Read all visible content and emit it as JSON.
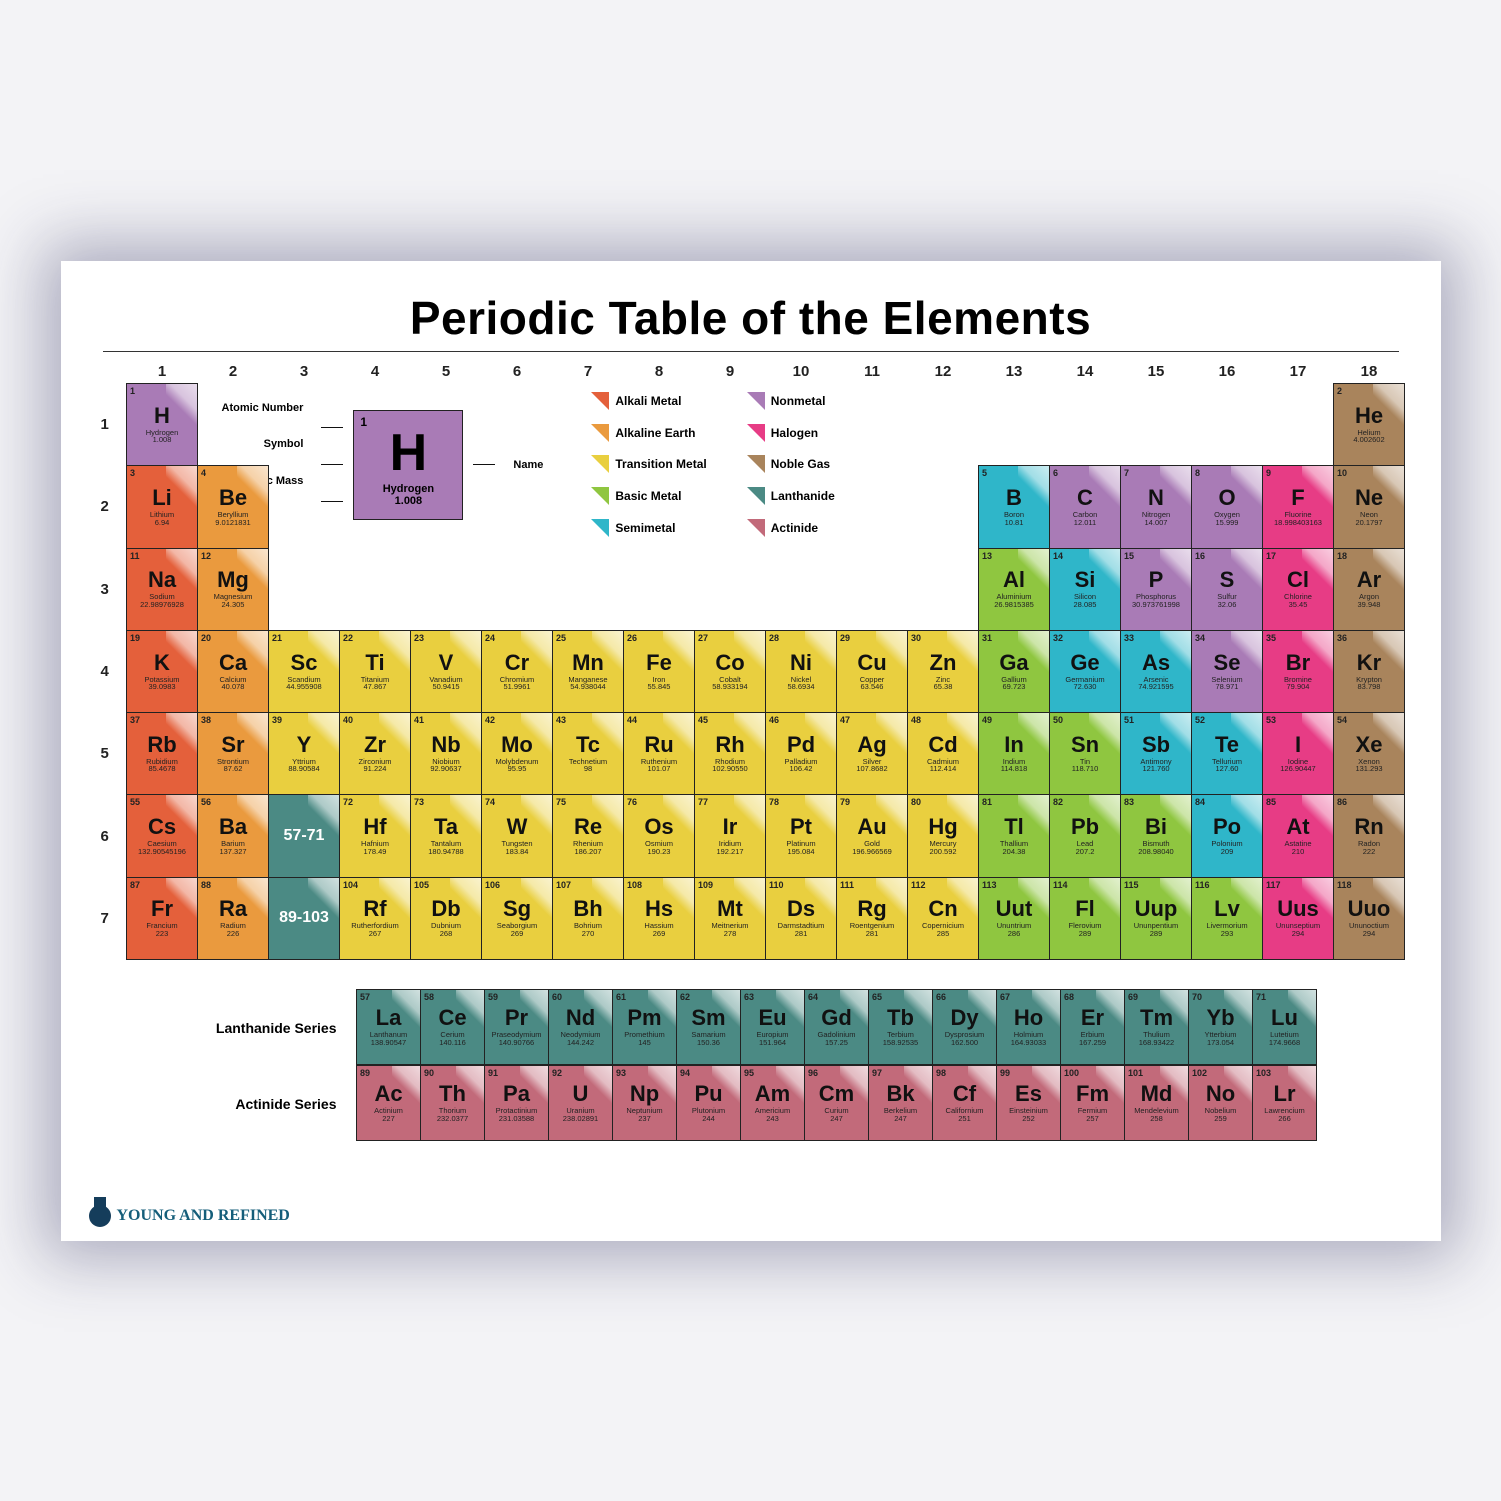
{
  "title": "Periodic Table of the Elements",
  "brand": "YOUNG AND REFINED",
  "key": {
    "atomic_number_label": "Atomic Number",
    "symbol_label": "Symbol",
    "atomic_mass_label": "Atomic Mass",
    "name_label": "Name",
    "example": {
      "num": "1",
      "sym": "H",
      "name": "Hydrogen",
      "mass": "1.008",
      "color": "#a97bb6"
    }
  },
  "legend": [
    {
      "label": "Alkali Metal",
      "color": "#e4603b"
    },
    {
      "label": "Nonmetal",
      "color": "#a97bb6"
    },
    {
      "label": "Alkaline Earth",
      "color": "#ea9a3e"
    },
    {
      "label": "Halogen",
      "color": "#e73c85"
    },
    {
      "label": "Transition Metal",
      "color": "#e9cf3f"
    },
    {
      "label": "Noble Gas",
      "color": "#a9845c"
    },
    {
      "label": "Basic Metal",
      "color": "#8fc640"
    },
    {
      "label": "Lanthanide",
      "color": "#4b8a84"
    },
    {
      "label": "Semimetal",
      "color": "#2fb6c9"
    },
    {
      "label": "Actinide",
      "color": "#c26a7a"
    }
  ],
  "colors": {
    "alkali": "#e4603b",
    "alkaline": "#ea9a3e",
    "transition": "#e9cf3f",
    "basic": "#8fc640",
    "semimetal": "#2fb6c9",
    "nonmetal": "#a97bb6",
    "halogen": "#e73c85",
    "noble": "#a9845c",
    "lanth": "#4b8a84",
    "act": "#c26a7a"
  },
  "groups": [
    "1",
    "2",
    "3",
    "4",
    "5",
    "6",
    "7",
    "8",
    "9",
    "10",
    "11",
    "12",
    "13",
    "14",
    "15",
    "16",
    "17",
    "18"
  ],
  "periods": [
    "1",
    "2",
    "3",
    "4",
    "5",
    "6",
    "7"
  ],
  "lanth_label": "Lanthanide Series",
  "act_label": "Actinide Series",
  "lanth_range": "57-71",
  "act_range": "89-103",
  "elements": [
    {
      "n": 1,
      "s": "H",
      "nm": "Hydrogen",
      "m": "1.008",
      "c": "nonmetal",
      "r": 1,
      "g": 1
    },
    {
      "n": 2,
      "s": "He",
      "nm": "Helium",
      "m": "4.002602",
      "c": "noble",
      "r": 1,
      "g": 18
    },
    {
      "n": 3,
      "s": "Li",
      "nm": "Lithium",
      "m": "6.94",
      "c": "alkali",
      "r": 2,
      "g": 1
    },
    {
      "n": 4,
      "s": "Be",
      "nm": "Beryllium",
      "m": "9.0121831",
      "c": "alkaline",
      "r": 2,
      "g": 2
    },
    {
      "n": 5,
      "s": "B",
      "nm": "Boron",
      "m": "10.81",
      "c": "semimetal",
      "r": 2,
      "g": 13
    },
    {
      "n": 6,
      "s": "C",
      "nm": "Carbon",
      "m": "12.011",
      "c": "nonmetal",
      "r": 2,
      "g": 14
    },
    {
      "n": 7,
      "s": "N",
      "nm": "Nitrogen",
      "m": "14.007",
      "c": "nonmetal",
      "r": 2,
      "g": 15
    },
    {
      "n": 8,
      "s": "O",
      "nm": "Oxygen",
      "m": "15.999",
      "c": "nonmetal",
      "r": 2,
      "g": 16
    },
    {
      "n": 9,
      "s": "F",
      "nm": "Fluorine",
      "m": "18.998403163",
      "c": "halogen",
      "r": 2,
      "g": 17
    },
    {
      "n": 10,
      "s": "Ne",
      "nm": "Neon",
      "m": "20.1797",
      "c": "noble",
      "r": 2,
      "g": 18
    },
    {
      "n": 11,
      "s": "Na",
      "nm": "Sodium",
      "m": "22.98976928",
      "c": "alkali",
      "r": 3,
      "g": 1
    },
    {
      "n": 12,
      "s": "Mg",
      "nm": "Magnesium",
      "m": "24.305",
      "c": "alkaline",
      "r": 3,
      "g": 2
    },
    {
      "n": 13,
      "s": "Al",
      "nm": "Aluminium",
      "m": "26.9815385",
      "c": "basic",
      "r": 3,
      "g": 13
    },
    {
      "n": 14,
      "s": "Si",
      "nm": "Silicon",
      "m": "28.085",
      "c": "semimetal",
      "r": 3,
      "g": 14
    },
    {
      "n": 15,
      "s": "P",
      "nm": "Phosphorus",
      "m": "30.973761998",
      "c": "nonmetal",
      "r": 3,
      "g": 15
    },
    {
      "n": 16,
      "s": "S",
      "nm": "Sulfur",
      "m": "32.06",
      "c": "nonmetal",
      "r": 3,
      "g": 16
    },
    {
      "n": 17,
      "s": "Cl",
      "nm": "Chlorine",
      "m": "35.45",
      "c": "halogen",
      "r": 3,
      "g": 17
    },
    {
      "n": 18,
      "s": "Ar",
      "nm": "Argon",
      "m": "39.948",
      "c": "noble",
      "r": 3,
      "g": 18
    },
    {
      "n": 19,
      "s": "K",
      "nm": "Potassium",
      "m": "39.0983",
      "c": "alkali",
      "r": 4,
      "g": 1
    },
    {
      "n": 20,
      "s": "Ca",
      "nm": "Calcium",
      "m": "40.078",
      "c": "alkaline",
      "r": 4,
      "g": 2
    },
    {
      "n": 21,
      "s": "Sc",
      "nm": "Scandium",
      "m": "44.955908",
      "c": "transition",
      "r": 4,
      "g": 3
    },
    {
      "n": 22,
      "s": "Ti",
      "nm": "Titanium",
      "m": "47.867",
      "c": "transition",
      "r": 4,
      "g": 4
    },
    {
      "n": 23,
      "s": "V",
      "nm": "Vanadium",
      "m": "50.9415",
      "c": "transition",
      "r": 4,
      "g": 5
    },
    {
      "n": 24,
      "s": "Cr",
      "nm": "Chromium",
      "m": "51.9961",
      "c": "transition",
      "r": 4,
      "g": 6
    },
    {
      "n": 25,
      "s": "Mn",
      "nm": "Manganese",
      "m": "54.938044",
      "c": "transition",
      "r": 4,
      "g": 7
    },
    {
      "n": 26,
      "s": "Fe",
      "nm": "Iron",
      "m": "55.845",
      "c": "transition",
      "r": 4,
      "g": 8
    },
    {
      "n": 27,
      "s": "Co",
      "nm": "Cobalt",
      "m": "58.933194",
      "c": "transition",
      "r": 4,
      "g": 9
    },
    {
      "n": 28,
      "s": "Ni",
      "nm": "Nickel",
      "m": "58.6934",
      "c": "transition",
      "r": 4,
      "g": 10
    },
    {
      "n": 29,
      "s": "Cu",
      "nm": "Copper",
      "m": "63.546",
      "c": "transition",
      "r": 4,
      "g": 11
    },
    {
      "n": 30,
      "s": "Zn",
      "nm": "Zinc",
      "m": "65.38",
      "c": "transition",
      "r": 4,
      "g": 12
    },
    {
      "n": 31,
      "s": "Ga",
      "nm": "Gallium",
      "m": "69.723",
      "c": "basic",
      "r": 4,
      "g": 13
    },
    {
      "n": 32,
      "s": "Ge",
      "nm": "Germanium",
      "m": "72.630",
      "c": "semimetal",
      "r": 4,
      "g": 14
    },
    {
      "n": 33,
      "s": "As",
      "nm": "Arsenic",
      "m": "74.921595",
      "c": "semimetal",
      "r": 4,
      "g": 15
    },
    {
      "n": 34,
      "s": "Se",
      "nm": "Selenium",
      "m": "78.971",
      "c": "nonmetal",
      "r": 4,
      "g": 16
    },
    {
      "n": 35,
      "s": "Br",
      "nm": "Bromine",
      "m": "79.904",
      "c": "halogen",
      "r": 4,
      "g": 17
    },
    {
      "n": 36,
      "s": "Kr",
      "nm": "Krypton",
      "m": "83.798",
      "c": "noble",
      "r": 4,
      "g": 18
    },
    {
      "n": 37,
      "s": "Rb",
      "nm": "Rubidium",
      "m": "85.4678",
      "c": "alkali",
      "r": 5,
      "g": 1
    },
    {
      "n": 38,
      "s": "Sr",
      "nm": "Strontium",
      "m": "87.62",
      "c": "alkaline",
      "r": 5,
      "g": 2
    },
    {
      "n": 39,
      "s": "Y",
      "nm": "Yttrium",
      "m": "88.90584",
      "c": "transition",
      "r": 5,
      "g": 3
    },
    {
      "n": 40,
      "s": "Zr",
      "nm": "Zirconium",
      "m": "91.224",
      "c": "transition",
      "r": 5,
      "g": 4
    },
    {
      "n": 41,
      "s": "Nb",
      "nm": "Niobium",
      "m": "92.90637",
      "c": "transition",
      "r": 5,
      "g": 5
    },
    {
      "n": 42,
      "s": "Mo",
      "nm": "Molybdenum",
      "m": "95.95",
      "c": "transition",
      "r": 5,
      "g": 6
    },
    {
      "n": 43,
      "s": "Tc",
      "nm": "Technetium",
      "m": "98",
      "c": "transition",
      "r": 5,
      "g": 7
    },
    {
      "n": 44,
      "s": "Ru",
      "nm": "Ruthenium",
      "m": "101.07",
      "c": "transition",
      "r": 5,
      "g": 8
    },
    {
      "n": 45,
      "s": "Rh",
      "nm": "Rhodium",
      "m": "102.90550",
      "c": "transition",
      "r": 5,
      "g": 9
    },
    {
      "n": 46,
      "s": "Pd",
      "nm": "Palladium",
      "m": "106.42",
      "c": "transition",
      "r": 5,
      "g": 10
    },
    {
      "n": 47,
      "s": "Ag",
      "nm": "Silver",
      "m": "107.8682",
      "c": "transition",
      "r": 5,
      "g": 11
    },
    {
      "n": 48,
      "s": "Cd",
      "nm": "Cadmium",
      "m": "112.414",
      "c": "transition",
      "r": 5,
      "g": 12
    },
    {
      "n": 49,
      "s": "In",
      "nm": "Indium",
      "m": "114.818",
      "c": "basic",
      "r": 5,
      "g": 13
    },
    {
      "n": 50,
      "s": "Sn",
      "nm": "Tin",
      "m": "118.710",
      "c": "basic",
      "r": 5,
      "g": 14
    },
    {
      "n": 51,
      "s": "Sb",
      "nm": "Antimony",
      "m": "121.760",
      "c": "semimetal",
      "r": 5,
      "g": 15
    },
    {
      "n": 52,
      "s": "Te",
      "nm": "Tellurium",
      "m": "127.60",
      "c": "semimetal",
      "r": 5,
      "g": 16
    },
    {
      "n": 53,
      "s": "I",
      "nm": "Iodine",
      "m": "126.90447",
      "c": "halogen",
      "r": 5,
      "g": 17
    },
    {
      "n": 54,
      "s": "Xe",
      "nm": "Xenon",
      "m": "131.293",
      "c": "noble",
      "r": 5,
      "g": 18
    },
    {
      "n": 55,
      "s": "Cs",
      "nm": "Caesium",
      "m": "132.90545196",
      "c": "alkali",
      "r": 6,
      "g": 1
    },
    {
      "n": 56,
      "s": "Ba",
      "nm": "Barium",
      "m": "137.327",
      "c": "alkaline",
      "r": 6,
      "g": 2
    },
    {
      "n": 72,
      "s": "Hf",
      "nm": "Hafnium",
      "m": "178.49",
      "c": "transition",
      "r": 6,
      "g": 4
    },
    {
      "n": 73,
      "s": "Ta",
      "nm": "Tantalum",
      "m": "180.94788",
      "c": "transition",
      "r": 6,
      "g": 5
    },
    {
      "n": 74,
      "s": "W",
      "nm": "Tungsten",
      "m": "183.84",
      "c": "transition",
      "r": 6,
      "g": 6
    },
    {
      "n": 75,
      "s": "Re",
      "nm": "Rhenium",
      "m": "186.207",
      "c": "transition",
      "r": 6,
      "g": 7
    },
    {
      "n": 76,
      "s": "Os",
      "nm": "Osmium",
      "m": "190.23",
      "c": "transition",
      "r": 6,
      "g": 8
    },
    {
      "n": 77,
      "s": "Ir",
      "nm": "Iridium",
      "m": "192.217",
      "c": "transition",
      "r": 6,
      "g": 9
    },
    {
      "n": 78,
      "s": "Pt",
      "nm": "Platinum",
      "m": "195.084",
      "c": "transition",
      "r": 6,
      "g": 10
    },
    {
      "n": 79,
      "s": "Au",
      "nm": "Gold",
      "m": "196.966569",
      "c": "transition",
      "r": 6,
      "g": 11
    },
    {
      "n": 80,
      "s": "Hg",
      "nm": "Mercury",
      "m": "200.592",
      "c": "transition",
      "r": 6,
      "g": 12
    },
    {
      "n": 81,
      "s": "Tl",
      "nm": "Thallium",
      "m": "204.38",
      "c": "basic",
      "r": 6,
      "g": 13
    },
    {
      "n": 82,
      "s": "Pb",
      "nm": "Lead",
      "m": "207.2",
      "c": "basic",
      "r": 6,
      "g": 14
    },
    {
      "n": 83,
      "s": "Bi",
      "nm": "Bismuth",
      "m": "208.98040",
      "c": "basic",
      "r": 6,
      "g": 15
    },
    {
      "n": 84,
      "s": "Po",
      "nm": "Polonium",
      "m": "209",
      "c": "semimetal",
      "r": 6,
      "g": 16
    },
    {
      "n": 85,
      "s": "At",
      "nm": "Astatine",
      "m": "210",
      "c": "halogen",
      "r": 6,
      "g": 17
    },
    {
      "n": 86,
      "s": "Rn",
      "nm": "Radon",
      "m": "222",
      "c": "noble",
      "r": 6,
      "g": 18
    },
    {
      "n": 87,
      "s": "Fr",
      "nm": "Francium",
      "m": "223",
      "c": "alkali",
      "r": 7,
      "g": 1
    },
    {
      "n": 88,
      "s": "Ra",
      "nm": "Radium",
      "m": "226",
      "c": "alkaline",
      "r": 7,
      "g": 2
    },
    {
      "n": 104,
      "s": "Rf",
      "nm": "Rutherfordium",
      "m": "267",
      "c": "transition",
      "r": 7,
      "g": 4
    },
    {
      "n": 105,
      "s": "Db",
      "nm": "Dubnium",
      "m": "268",
      "c": "transition",
      "r": 7,
      "g": 5
    },
    {
      "n": 106,
      "s": "Sg",
      "nm": "Seaborgium",
      "m": "269",
      "c": "transition",
      "r": 7,
      "g": 6
    },
    {
      "n": 107,
      "s": "Bh",
      "nm": "Bohrium",
      "m": "270",
      "c": "transition",
      "r": 7,
      "g": 7
    },
    {
      "n": 108,
      "s": "Hs",
      "nm": "Hassium",
      "m": "269",
      "c": "transition",
      "r": 7,
      "g": 8
    },
    {
      "n": 109,
      "s": "Mt",
      "nm": "Meitnerium",
      "m": "278",
      "c": "transition",
      "r": 7,
      "g": 9
    },
    {
      "n": 110,
      "s": "Ds",
      "nm": "Darmstadtium",
      "m": "281",
      "c": "transition",
      "r": 7,
      "g": 10
    },
    {
      "n": 111,
      "s": "Rg",
      "nm": "Roentgenium",
      "m": "281",
      "c": "transition",
      "r": 7,
      "g": 11
    },
    {
      "n": 112,
      "s": "Cn",
      "nm": "Copernicium",
      "m": "285",
      "c": "transition",
      "r": 7,
      "g": 12
    },
    {
      "n": 113,
      "s": "Uut",
      "nm": "Ununtrium",
      "m": "286",
      "c": "basic",
      "r": 7,
      "g": 13
    },
    {
      "n": 114,
      "s": "Fl",
      "nm": "Flerovium",
      "m": "289",
      "c": "basic",
      "r": 7,
      "g": 14
    },
    {
      "n": 115,
      "s": "Uup",
      "nm": "Ununpentium",
      "m": "289",
      "c": "basic",
      "r": 7,
      "g": 15
    },
    {
      "n": 116,
      "s": "Lv",
      "nm": "Livermorium",
      "m": "293",
      "c": "basic",
      "r": 7,
      "g": 16
    },
    {
      "n": 117,
      "s": "Uus",
      "nm": "Ununseptium",
      "m": "294",
      "c": "halogen",
      "r": 7,
      "g": 17
    },
    {
      "n": 118,
      "s": "Uuo",
      "nm": "Ununoctium",
      "m": "294",
      "c": "noble",
      "r": 7,
      "g": 18
    }
  ],
  "lanthanides": [
    {
      "n": 57,
      "s": "La",
      "nm": "Lanthanum",
      "m": "138.90547"
    },
    {
      "n": 58,
      "s": "Ce",
      "nm": "Cerium",
      "m": "140.116"
    },
    {
      "n": 59,
      "s": "Pr",
      "nm": "Praseodymium",
      "m": "140.90766"
    },
    {
      "n": 60,
      "s": "Nd",
      "nm": "Neodymium",
      "m": "144.242"
    },
    {
      "n": 61,
      "s": "Pm",
      "nm": "Promethium",
      "m": "145"
    },
    {
      "n": 62,
      "s": "Sm",
      "nm": "Samarium",
      "m": "150.36"
    },
    {
      "n": 63,
      "s": "Eu",
      "nm": "Europium",
      "m": "151.964"
    },
    {
      "n": 64,
      "s": "Gd",
      "nm": "Gadolinium",
      "m": "157.25"
    },
    {
      "n": 65,
      "s": "Tb",
      "nm": "Terbium",
      "m": "158.92535"
    },
    {
      "n": 66,
      "s": "Dy",
      "nm": "Dysprosium",
      "m": "162.500"
    },
    {
      "n": 67,
      "s": "Ho",
      "nm": "Holmium",
      "m": "164.93033"
    },
    {
      "n": 68,
      "s": "Er",
      "nm": "Erbium",
      "m": "167.259"
    },
    {
      "n": 69,
      "s": "Tm",
      "nm": "Thulium",
      "m": "168.93422"
    },
    {
      "n": 70,
      "s": "Yb",
      "nm": "Ytterbium",
      "m": "173.054"
    },
    {
      "n": 71,
      "s": "Lu",
      "nm": "Lutetium",
      "m": "174.9668"
    }
  ],
  "actinides": [
    {
      "n": 89,
      "s": "Ac",
      "nm": "Actinium",
      "m": "227"
    },
    {
      "n": 90,
      "s": "Th",
      "nm": "Thorium",
      "m": "232.0377"
    },
    {
      "n": 91,
      "s": "Pa",
      "nm": "Protactinium",
      "m": "231.03588"
    },
    {
      "n": 92,
      "s": "U",
      "nm": "Uranium",
      "m": "238.02891"
    },
    {
      "n": 93,
      "s": "Np",
      "nm": "Neptunium",
      "m": "237"
    },
    {
      "n": 94,
      "s": "Pu",
      "nm": "Plutonium",
      "m": "244"
    },
    {
      "n": 95,
      "s": "Am",
      "nm": "Americium",
      "m": "243"
    },
    {
      "n": 96,
      "s": "Cm",
      "nm": "Curium",
      "m": "247"
    },
    {
      "n": 97,
      "s": "Bk",
      "nm": "Berkelium",
      "m": "247"
    },
    {
      "n": 98,
      "s": "Cf",
      "nm": "Californium",
      "m": "251"
    },
    {
      "n": 99,
      "s": "Es",
      "nm": "Einsteinium",
      "m": "252"
    },
    {
      "n": 100,
      "s": "Fm",
      "nm": "Fermium",
      "m": "257"
    },
    {
      "n": 101,
      "s": "Md",
      "nm": "Mendelevium",
      "m": "258"
    },
    {
      "n": 102,
      "s": "No",
      "nm": "Nobelium",
      "m": "259"
    },
    {
      "n": 103,
      "s": "Lr",
      "nm": "Lawrencium",
      "m": "266"
    }
  ]
}
